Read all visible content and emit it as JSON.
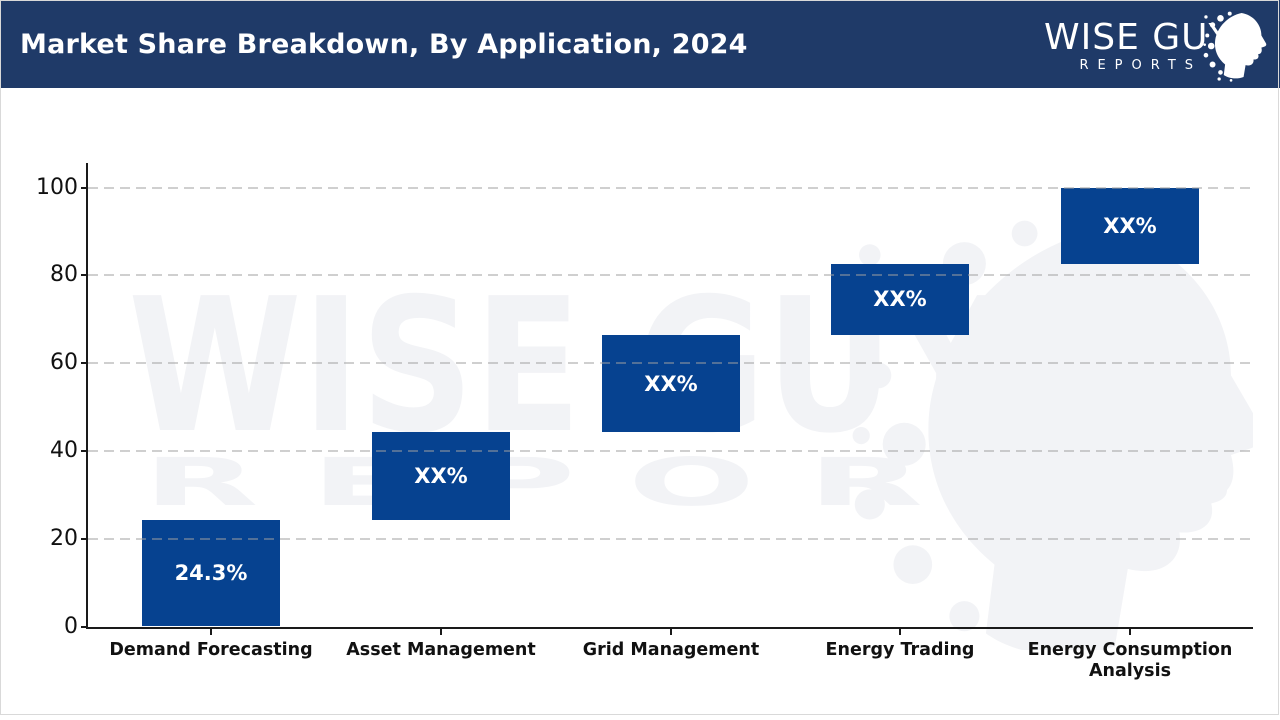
{
  "header": {
    "title": "Market Share Breakdown, By Application, 2024",
    "logo_line1": "WISE GUY",
    "logo_line2": "REPORTS"
  },
  "watermark": {
    "line1": "WISE GUY",
    "line2": "R E P O R T S"
  },
  "chart_data": {
    "type": "bar",
    "subtype": "waterfall",
    "title": "Market Share Breakdown, By Application, 2024",
    "categories": [
      "Demand Forecasting",
      "Asset Management",
      "Grid Management",
      "Energy Trading",
      "Energy Consumption Analysis"
    ],
    "bars": [
      {
        "category": "Demand Forecasting",
        "start": 0,
        "end": 24.3,
        "value": 24.3,
        "label": "24.3%"
      },
      {
        "category": "Asset Management",
        "start": 24.3,
        "end": 44.2,
        "value": 19.9,
        "label": "XX%"
      },
      {
        "category": "Grid Management",
        "start": 44.2,
        "end": 66.5,
        "value": 22.3,
        "label": "XX%"
      },
      {
        "category": "Energy Trading",
        "start": 66.5,
        "end": 82.5,
        "value": 16.0,
        "label": "XX%"
      },
      {
        "category": "Energy Consumption Analysis",
        "start": 82.5,
        "end": 100,
        "value": 17.5,
        "label": "XX%"
      }
    ],
    "yticks": [
      0,
      20,
      40,
      60,
      80,
      100
    ],
    "ylim": [
      0,
      105
    ],
    "xlabel": "",
    "ylabel": "",
    "legend_position": "none",
    "grid": "horizontal-dashed"
  },
  "colors": {
    "header_bg": "#1f3a68",
    "bar_fill": "#064290",
    "bar_label": "#ffffff",
    "grid_line": "#c8c8c8",
    "axis": "#1a1a1a",
    "watermark": "#f2f3f6",
    "page_border": "#d9d9d9"
  }
}
